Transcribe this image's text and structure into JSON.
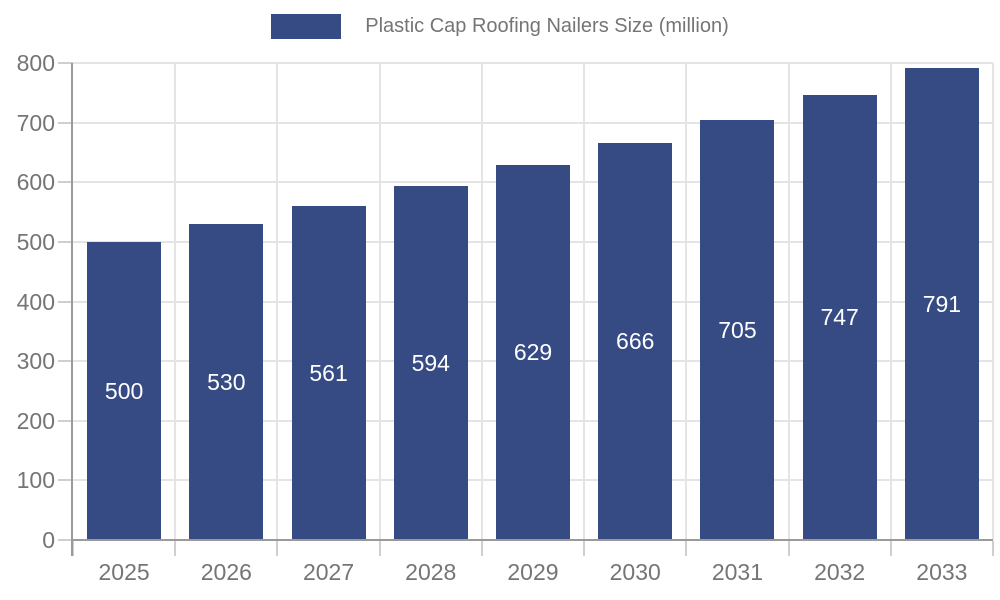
{
  "legend": {
    "label": "Plastic Cap Roofing Nailers Size (million)"
  },
  "colors": {
    "bar": "#364a84",
    "axis_text": "#757575",
    "grid": "#e4e4e4",
    "axis_line": "#9a9a9a",
    "tick": "#cfcfcf",
    "value_label": "#ffffff",
    "background": "#ffffff"
  },
  "chart_data": {
    "type": "bar",
    "categories": [
      "2025",
      "2026",
      "2027",
      "2028",
      "2029",
      "2030",
      "2031",
      "2032",
      "2033"
    ],
    "series": [
      {
        "name": "Plastic Cap Roofing Nailers Size (million)",
        "values": [
          500,
          530,
          561,
          594,
          629,
          666,
          705,
          747,
          791
        ]
      }
    ],
    "title": "",
    "xlabel": "",
    "ylabel": "",
    "ylim": [
      0,
      800
    ],
    "ytick_step": 100,
    "grid": true,
    "legend_position": "top-center",
    "value_labels": "inside-center"
  }
}
